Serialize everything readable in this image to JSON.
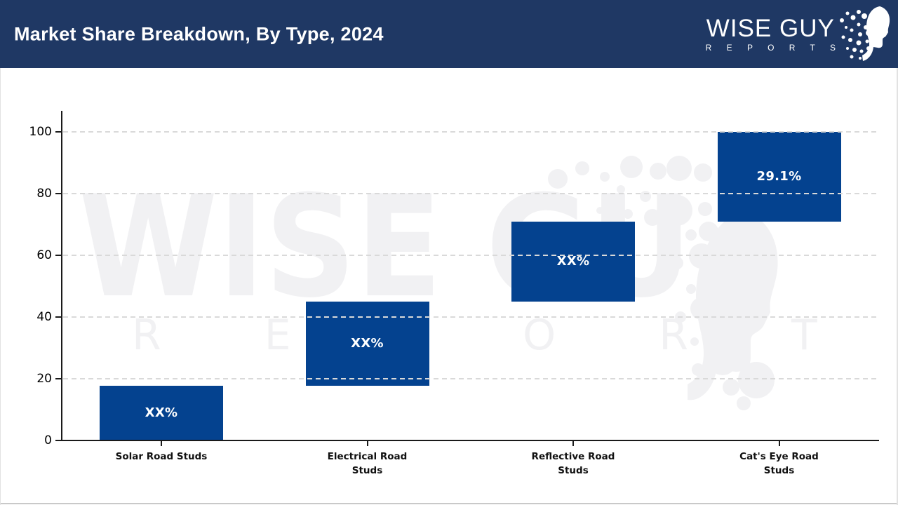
{
  "header": {
    "title": "Market Share Breakdown, By Type, 2024",
    "bg_color": "#1F3864",
    "logo": {
      "brand": "WISE GUY",
      "sub": "R E P O R T S"
    }
  },
  "watermark": {
    "brand": "WISE GU",
    "sub": "R E P O R T S"
  },
  "chart_data": {
    "type": "bar",
    "variant": "waterfall",
    "title": "Market Share Breakdown, By Type, 2024",
    "categories": [
      "Solar Road Studs",
      "Electrical Road Studs",
      "Reflective Road Studs",
      "Cat's Eye Road Studs"
    ],
    "segments": [
      {
        "category": "Solar Road Studs",
        "start": 0,
        "end": 17.6,
        "value_label": "XX%"
      },
      {
        "category": "Electrical Road Studs",
        "start": 17.6,
        "end": 45,
        "value_label": "XX%"
      },
      {
        "category": "Reflective Road Studs",
        "start": 45,
        "end": 70.9,
        "value_label": "XX%"
      },
      {
        "category": "Cat's Eye Road Studs",
        "start": 70.9,
        "end": 100,
        "value_label": "29.1%"
      }
    ],
    "yticks": [
      0,
      20,
      40,
      60,
      80,
      100
    ],
    "ylim": [
      0,
      106
    ],
    "xlabel": "",
    "ylabel": "",
    "grid": "horizontal dashed",
    "legend_position": "none",
    "bar_color": "#04428F",
    "bar_label_color": "#FFFFFF",
    "axis_color": "#1a1a1a",
    "gridline_color": "#d9d9d9"
  }
}
